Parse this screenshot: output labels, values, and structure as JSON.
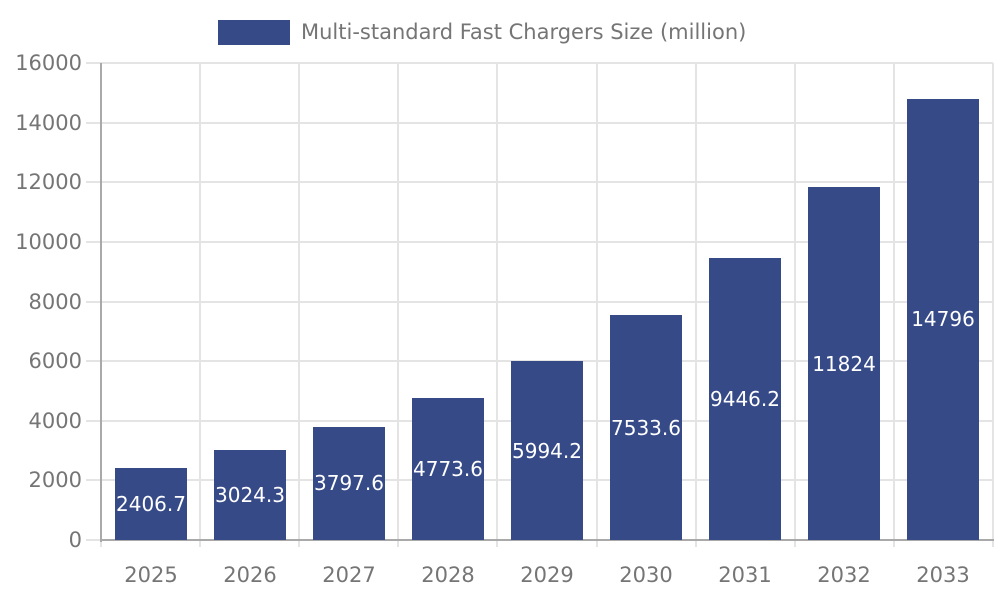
{
  "chart_data": {
    "type": "bar",
    "title": "Multi-standard Fast Chargers Size (million)",
    "series_name": "Multi-standard Fast Chargers Size (million)",
    "categories": [
      "2025",
      "2026",
      "2027",
      "2028",
      "2029",
      "2030",
      "2031",
      "2032",
      "2033"
    ],
    "values": [
      2406.7,
      3024.3,
      3797.6,
      4773.6,
      5994.2,
      7533.6,
      9446.2,
      11824,
      14796
    ],
    "xlabel": "",
    "ylabel": "",
    "ylim": [
      0,
      16000
    ],
    "yticks": [
      0,
      2000,
      4000,
      6000,
      8000,
      10000,
      12000,
      14000,
      16000
    ],
    "grid": true,
    "legend_position": "top",
    "bar_label_position": "inside-center",
    "colors": {
      "bar": "#364A88",
      "grid": "#e4e4e4",
      "axis": "#a9a9a9",
      "tick_label": "#757575",
      "bar_label": "#ffffff",
      "legend_text": "#757575",
      "background": "#ffffff"
    }
  }
}
